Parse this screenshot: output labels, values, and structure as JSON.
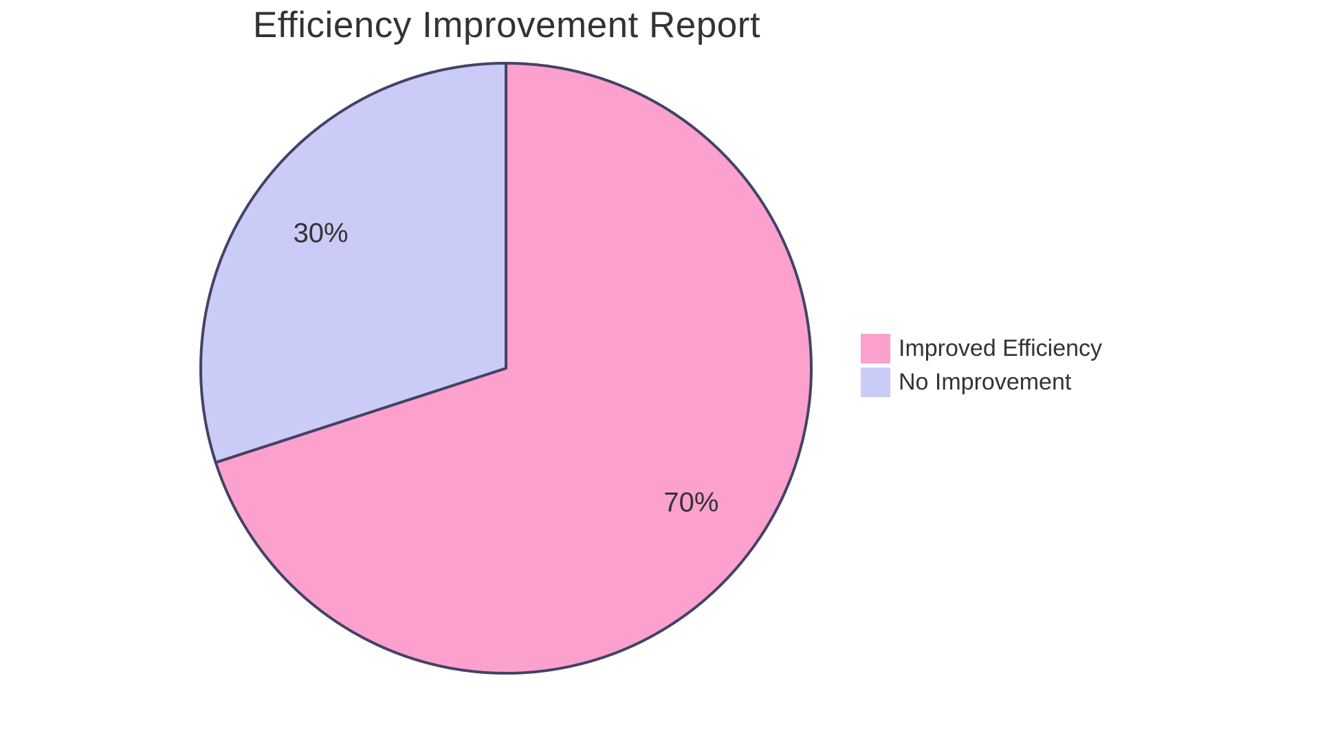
{
  "chart_data": {
    "type": "pie",
    "title": "Efficiency Improvement Report",
    "labels": [
      "Improved Efficiency",
      "No Improvement"
    ],
    "values": [
      70,
      30
    ],
    "slice_labels": [
      "70%",
      "30%"
    ],
    "colors": [
      "#FCA0CD",
      "#CBCBF7"
    ],
    "stroke_color": "#424365",
    "stroke_width": 4,
    "start_angle": "12-oclock",
    "direction": "clockwise",
    "legend_position": "right",
    "text_color": "#333333",
    "background": "#FFFFFF"
  }
}
